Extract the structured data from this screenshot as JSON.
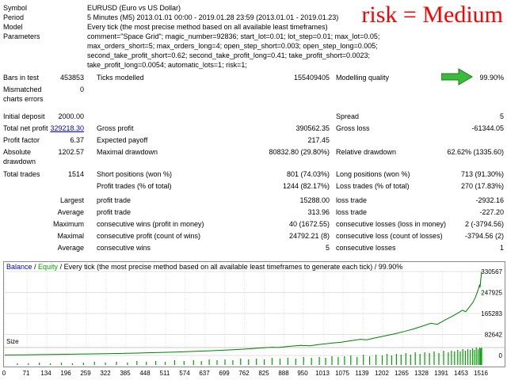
{
  "overlay": {
    "risk_text": "risk = Medium"
  },
  "report": {
    "info_rows": [
      {
        "label": "Symbol",
        "value": "EURUSD (Euro vs US Dollar)"
      },
      {
        "label": "Period",
        "value": "5 Minutes (M5) 2013.01.01 00:00 - 2019.01.28 23:59 (2013.01.01 - 2019.01.23)"
      },
      {
        "label": "Model",
        "value": "Every tick (the most precise method based on all available least timeframes)"
      },
      {
        "label": "Parameters",
        "value": "comment=\"Space Grid\"; magic_number=92836; start_lot=0.01; lot_step=0.01; max_lot=0.05; max_orders_short=5; max_orders_long=4; open_step_short=0.003; open_step_long=0.005; second_take_profit_short=0.62; second_take_profit_long=0.41; take_profit_short=0.0023; take_profit_long=0.0054; automatic_lots=1; risk=1;"
      }
    ],
    "stat_rows": [
      {
        "l1": "Bars in test",
        "v1": "453853",
        "l2": "Ticks modelled",
        "v2": "155409405",
        "l3": "Modelling quality",
        "v3": "99.90%"
      },
      {
        "l1": "Mismatched charts errors",
        "v1": "0"
      },
      {
        "spacer": 10
      },
      {
        "l1": "Initial deposit",
        "v1": "2000.00",
        "l3": "Spread",
        "v3": "5"
      },
      {
        "l1": "Total net profit",
        "v1": "329218.30",
        "v1_link": true,
        "l2": "Gross profit",
        "v2": "390562.35",
        "l3": "Gross loss",
        "v3": "-61344.05"
      },
      {
        "l1": "Profit factor",
        "v1": "6.37",
        "l2": "Expected payoff",
        "v2": "217.45"
      },
      {
        "l1": "Absolute drawdown",
        "v1": "1202.57",
        "l2": "Maximal drawdown",
        "v2": "80832.80 (29.80%)",
        "l3": "Relative drawdown",
        "v3": "62.62% (1335.60)"
      },
      {
        "spacer": 4
      },
      {
        "l1": "Total trades",
        "v1": "1514",
        "l2": "Short positions (won %)",
        "v2": "801 (74.03%)",
        "l3": "Long positions (won %)",
        "v3": "713 (91.30%)"
      },
      {
        "l2": "Profit trades (% of total)",
        "v2": "1244 (82.17%)",
        "l3": "Loss trades (% of total)",
        "v3": "270 (17.83%)"
      },
      {
        "spacer": 3
      },
      {
        "k": "Largest",
        "l2": "profit trade",
        "v2": "15288.00",
        "l3": "loss trade",
        "v3": "-2932.16"
      },
      {
        "k": "Average",
        "l2": "profit trade",
        "v2": "313.96",
        "l3": "loss trade",
        "v3": "-227.20"
      },
      {
        "k": "Maximum",
        "l2": "consecutive wins (profit in money)",
        "v2": "40 (1672.55)",
        "l3": "consecutive losses (loss in money)",
        "v3": "2 (-3794.56)"
      },
      {
        "k": "Maximal",
        "l2": "consecutive profit (count of wins)",
        "v2": "24792.21 (8)",
        "l3": "consecutive loss (count of losses)",
        "v3": "-3794.56 (2)"
      },
      {
        "k": "Average",
        "l2": "consecutive wins",
        "v2": "5",
        "l3": "consecutive losses",
        "v3": "1"
      }
    ]
  },
  "chart_data": {
    "type": "line",
    "title_parts": {
      "balance": "Balance",
      "equity": "Equity",
      "sep": " / ",
      "rest": "Every tick (the most precise method based on all available least timeframes to generate each tick) / 99.90%"
    },
    "size_label": "Size",
    "xlim": [
      0,
      1516
    ],
    "ylim": [
      0,
      330567
    ],
    "x_ticks": [
      0,
      71,
      134,
      196,
      259,
      322,
      385,
      448,
      511,
      574,
      637,
      699,
      762,
      825,
      888,
      950,
      1013,
      1075,
      1139,
      1202,
      1265,
      1328,
      1391,
      1453,
      1516
    ],
    "y_ticks": [
      330567,
      247925,
      165283,
      82642,
      0
    ],
    "colors": {
      "grid": "#e2e2e2",
      "separator": "#c8c8c8"
    },
    "series": [
      {
        "name": "Balance",
        "color": "#008000",
        "points": [
          [
            0,
            2000
          ],
          [
            60,
            2600
          ],
          [
            120,
            3400
          ],
          [
            180,
            4300
          ],
          [
            240,
            5300
          ],
          [
            300,
            6400
          ],
          [
            360,
            7700
          ],
          [
            420,
            9300
          ],
          [
            480,
            11200
          ],
          [
            540,
            13400
          ],
          [
            600,
            15900
          ],
          [
            650,
            18300
          ],
          [
            700,
            21000
          ],
          [
            740,
            23500
          ],
          [
            780,
            26500
          ],
          [
            820,
            30000
          ],
          [
            850,
            32500
          ],
          [
            870,
            31400
          ],
          [
            900,
            35500
          ],
          [
            940,
            39500
          ],
          [
            970,
            38200
          ],
          [
            1000,
            43500
          ],
          [
            1040,
            48500
          ],
          [
            1070,
            52500
          ],
          [
            1100,
            58000
          ],
          [
            1130,
            63500
          ],
          [
            1150,
            61500
          ],
          [
            1180,
            70000
          ],
          [
            1210,
            77500
          ],
          [
            1240,
            85500
          ],
          [
            1270,
            94500
          ],
          [
            1300,
            104500
          ],
          [
            1330,
            116500
          ],
          [
            1355,
            127000
          ],
          [
            1375,
            122500
          ],
          [
            1400,
            140000
          ],
          [
            1420,
            152500
          ],
          [
            1440,
            166500
          ],
          [
            1455,
            178500
          ],
          [
            1465,
            172500
          ],
          [
            1478,
            192500
          ],
          [
            1488,
            208500
          ],
          [
            1496,
            228500
          ],
          [
            1502,
            248500
          ],
          [
            1506,
            262500
          ],
          [
            1509,
            276500
          ],
          [
            1511,
            268500
          ],
          [
            1513,
            296500
          ],
          [
            1515,
            318500
          ],
          [
            1516,
            330567
          ]
        ]
      }
    ],
    "size_bars": {
      "color": "#00a000",
      "bars": [
        [
          40,
          2
        ],
        [
          75,
          2
        ],
        [
          110,
          3
        ],
        [
          145,
          2
        ],
        [
          180,
          3
        ],
        [
          215,
          2
        ],
        [
          250,
          3
        ],
        [
          285,
          4
        ],
        [
          320,
          3
        ],
        [
          355,
          4
        ],
        [
          390,
          3
        ],
        [
          420,
          5
        ],
        [
          450,
          4
        ],
        [
          480,
          5
        ],
        [
          510,
          4
        ],
        [
          540,
          6
        ],
        [
          570,
          5
        ],
        [
          600,
          6
        ],
        [
          625,
          5
        ],
        [
          650,
          7
        ],
        [
          675,
          6
        ],
        [
          700,
          7
        ],
        [
          725,
          6
        ],
        [
          750,
          8
        ],
        [
          775,
          7
        ],
        [
          800,
          8
        ],
        [
          825,
          7
        ],
        [
          850,
          9
        ],
        [
          875,
          8
        ],
        [
          900,
          9
        ],
        [
          925,
          8
        ],
        [
          950,
          10
        ],
        [
          975,
          9
        ],
        [
          1000,
          10
        ],
        [
          1020,
          9
        ],
        [
          1040,
          11
        ],
        [
          1060,
          10
        ],
        [
          1080,
          11
        ],
        [
          1100,
          12
        ],
        [
          1120,
          10
        ],
        [
          1140,
          13
        ],
        [
          1160,
          11
        ],
        [
          1180,
          13
        ],
        [
          1200,
          12
        ],
        [
          1215,
          14
        ],
        [
          1230,
          12
        ],
        [
          1245,
          14
        ],
        [
          1260,
          13
        ],
        [
          1275,
          15
        ],
        [
          1290,
          13
        ],
        [
          1305,
          16
        ],
        [
          1320,
          14
        ],
        [
          1335,
          16
        ],
        [
          1350,
          15
        ],
        [
          1365,
          17
        ],
        [
          1380,
          15
        ],
        [
          1395,
          18
        ],
        [
          1410,
          16
        ],
        [
          1420,
          18
        ],
        [
          1430,
          17
        ],
        [
          1440,
          19
        ],
        [
          1448,
          17
        ],
        [
          1456,
          20
        ],
        [
          1464,
          18
        ],
        [
          1472,
          20
        ],
        [
          1480,
          19
        ],
        [
          1487,
          21
        ],
        [
          1493,
          19
        ],
        [
          1499,
          22
        ],
        [
          1505,
          20
        ],
        [
          1510,
          22
        ],
        [
          1513,
          21
        ],
        [
          1516,
          22
        ]
      ]
    }
  }
}
